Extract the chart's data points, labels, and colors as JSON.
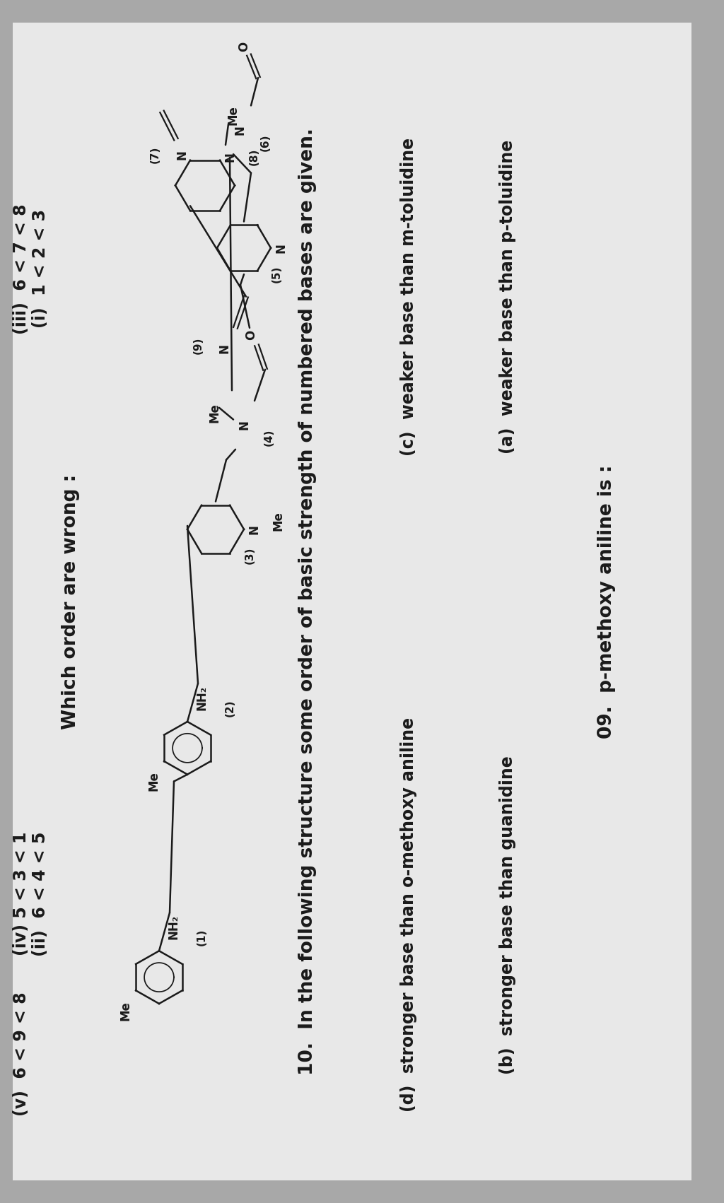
{
  "bg_color": "#a8a8a8",
  "paper_color": "#e8e8e8",
  "text_color": "#1a1a1a",
  "q09_text": "09.  p-methoxy aniline is :",
  "q09_a": "(a)  weaker base than p-toluidine",
  "q09_b": "(b)  stronger base than guanidine",
  "q09_c": "(c)  weaker base than m-toluidine",
  "q09_d": "(d)  stronger base than o-methoxy aniline",
  "q10_text": "10.  In the following structure some order of basic strength of numbered bases are given.",
  "q10_bottom": "Which order are wrong :",
  "q10_i": "(i)  1 < 2 < 3",
  "q10_ii": "(ii)  6 < 4 < 5",
  "q10_iii": "(iii)  6 < 7 < 8",
  "q10_iv": "(iv) 5 < 3 < 1",
  "q10_v": "(v)  6 < 9 < 8",
  "fs_question": 19,
  "fs_option": 17,
  "fs_struct": 13
}
